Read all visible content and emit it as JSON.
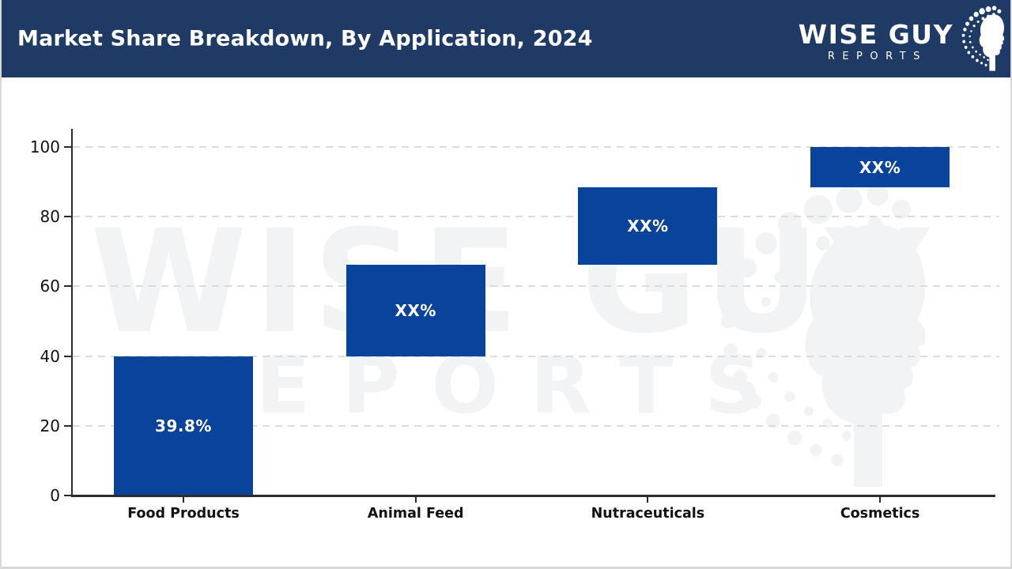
{
  "header": {
    "title": "Market Share Breakdown, By Application, 2024",
    "logo": {
      "wordmark": "WISE GUY",
      "subtext": "REPORTS"
    }
  },
  "watermark": {
    "wordmark": "WISE GUY",
    "subtext": "REPORTS"
  },
  "chart_data": {
    "type": "bar",
    "subtype": "waterfall",
    "title": "Market Share Breakdown, By Application, 2024",
    "categories": [
      "Food Products",
      "Animal Feed",
      "Nutraceuticals",
      "Cosmetics"
    ],
    "series": [
      {
        "name": "Market share (%)",
        "segments": [
          {
            "category": "Food Products",
            "start": 0,
            "end": 39.8,
            "displayed_label": "39.8%"
          },
          {
            "category": "Animal Feed",
            "start": 39.8,
            "end": 66.3,
            "displayed_label": "XX%"
          },
          {
            "category": "Nutraceuticals",
            "start": 66.3,
            "end": 88.4,
            "displayed_label": "XX%"
          },
          {
            "category": "Cosmetics",
            "start": 88.4,
            "end": 100,
            "displayed_label": "XX%"
          }
        ]
      }
    ],
    "xlabel": "",
    "ylabel": "",
    "y_ticks": [
      0,
      20,
      40,
      60,
      80,
      100
    ],
    "ylim": [
      0,
      105
    ],
    "grid": "horizontal-dashed",
    "legend_position": "none",
    "bar_color": "#09439B",
    "bar_label_color": "#FFFFFF",
    "axis_color": "#2B2B2B",
    "gridline_color": "#DCDCDC",
    "header_bg_color": "#1F3A64"
  }
}
